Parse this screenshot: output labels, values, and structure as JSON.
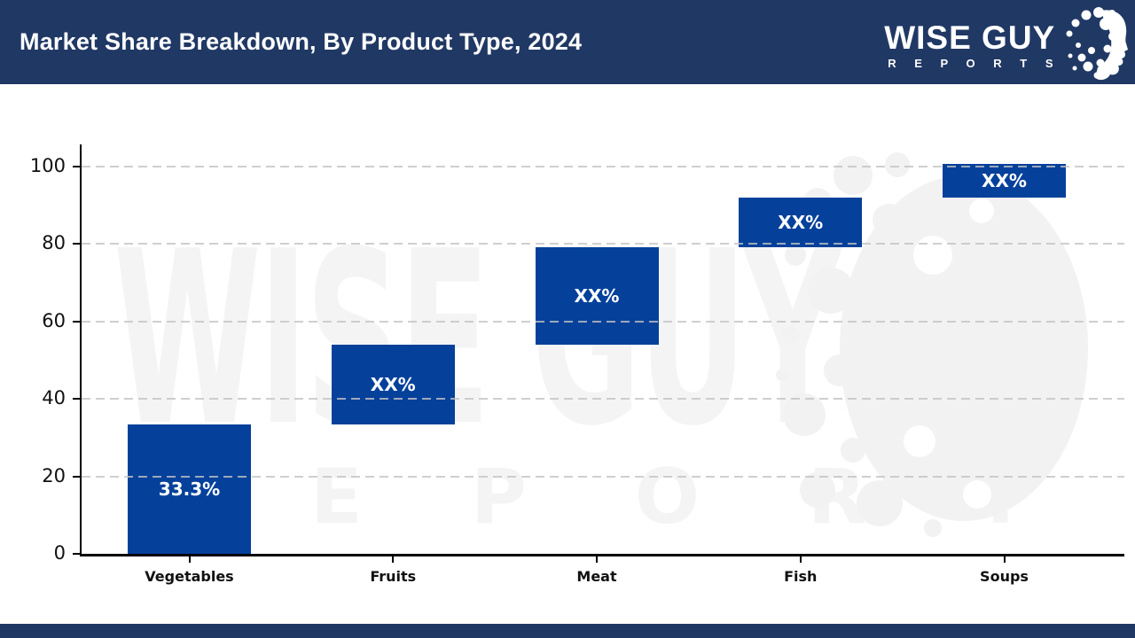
{
  "header": {
    "title": "Market Share Breakdown, By Product Type, 2024",
    "logo": {
      "line1": "WISE GUY",
      "line2": "R E P O R T S"
    }
  },
  "watermark": {
    "line1": "WISE GUY",
    "line2": "R E P O R T S"
  },
  "footer": {},
  "chart_data": {
    "type": "bar",
    "subtype": "waterfall",
    "title": "Market Share Breakdown, By Product Type, 2024",
    "categories": [
      "Vegetables",
      "Fruits",
      "Meat",
      "Fish",
      "Soups"
    ],
    "segments": [
      {
        "category": "Vegetables",
        "start": 0,
        "end": 33.3,
        "label": "33.3%"
      },
      {
        "category": "Fruits",
        "start": 33.3,
        "end": 54,
        "label": "XX%"
      },
      {
        "category": "Meat",
        "start": 54,
        "end": 79,
        "label": "XX%"
      },
      {
        "category": "Fish",
        "start": 79,
        "end": 92,
        "label": "XX%"
      },
      {
        "category": "Soups",
        "start": 92,
        "end": 100.5,
        "label": "XX%"
      }
    ],
    "yticks": [
      0,
      20,
      40,
      60,
      80,
      100
    ],
    "ylim": [
      0,
      105
    ],
    "xlabel": "",
    "ylabel": "",
    "grid": "horizontal-dashed",
    "legend": "none",
    "bar_color": "#05419b",
    "bar_label_color": "#ffffff",
    "axis_color": "#000000",
    "header_color": "#203864",
    "watermark_color": "#f4f4f4"
  }
}
